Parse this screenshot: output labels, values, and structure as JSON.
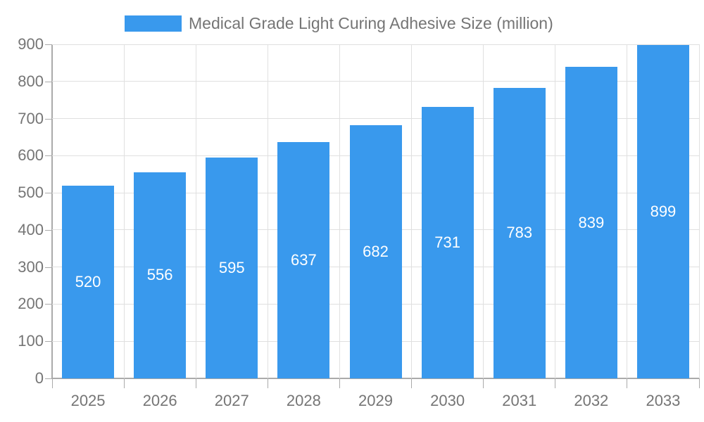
{
  "chart_data": {
    "type": "bar",
    "title": "Medical Grade Light Curing Adhesive Size (million)",
    "categories": [
      "2025",
      "2026",
      "2027",
      "2028",
      "2029",
      "2030",
      "2031",
      "2032",
      "2033"
    ],
    "values": [
      520,
      556,
      595,
      637,
      682,
      731,
      783,
      839,
      899
    ],
    "xlabel": "",
    "ylabel": "",
    "ylim": [
      0,
      900
    ],
    "yticks": [
      0,
      100,
      200,
      300,
      400,
      500,
      600,
      700,
      800,
      900
    ],
    "grid": true,
    "legend_position": "top",
    "bar_labels_inside": true
  },
  "legend": {
    "label": "Medical Grade Light Curing Adhesive Size (million)"
  },
  "colors": {
    "bar": "#3999ED",
    "grid": "#e0e0e0",
    "axis": "#aaaaaa",
    "tick": "#aaaaaa",
    "text": "#757575",
    "bar_label": "#ffffff",
    "background": "#ffffff"
  }
}
